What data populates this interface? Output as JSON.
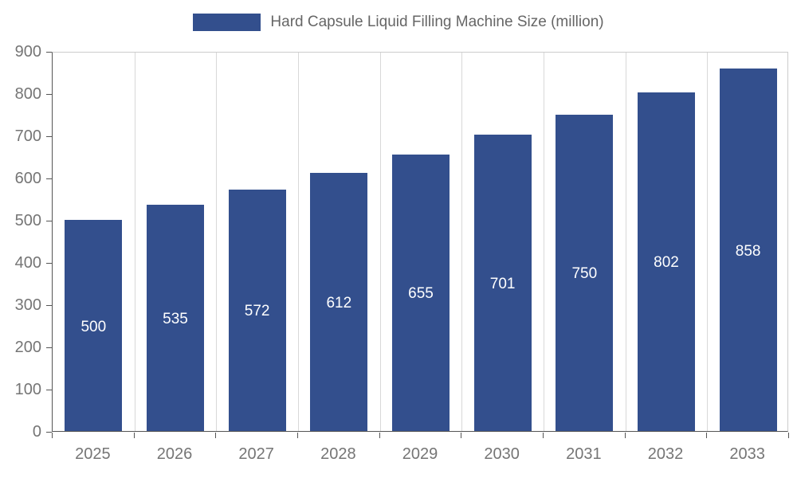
{
  "chart_data": {
    "type": "bar",
    "title": "Hard Capsule Liquid Filling Machine Size (million)",
    "categories": [
      "2025",
      "2026",
      "2027",
      "2028",
      "2029",
      "2030",
      "2031",
      "2032",
      "2033"
    ],
    "values": [
      500,
      535,
      572,
      612,
      655,
      701,
      750,
      802,
      858
    ],
    "xlabel": "",
    "ylabel": "",
    "ylim": [
      0,
      900
    ],
    "yticks": [
      0,
      100,
      200,
      300,
      400,
      500,
      600,
      700,
      800,
      900
    ],
    "grid": "vertical-only",
    "legend_position": "top-center",
    "bar_color": "#334f8d",
    "value_label_color": "#ffffff",
    "axis_tick_label_color": "#757575",
    "title_color": "#666666",
    "gridline_color": "#d8d8d8"
  }
}
